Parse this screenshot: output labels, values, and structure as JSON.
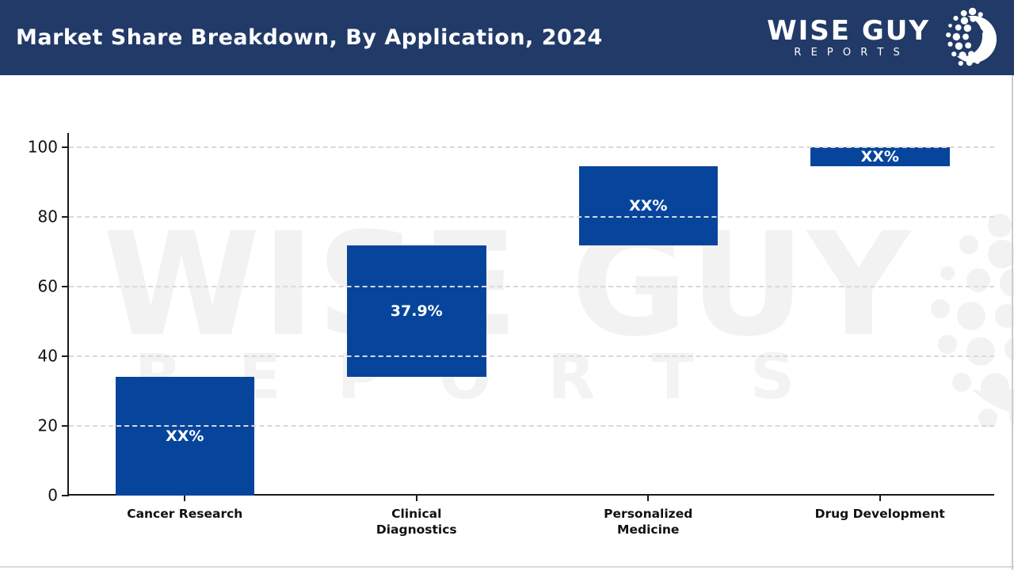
{
  "header": {
    "title": "Market Share Breakdown, By Application, 2024",
    "logo": {
      "name": "WISE GUY",
      "tagline": "R E P O R T S"
    }
  },
  "watermark": {
    "name": "WISE GUY",
    "tagline": "R E P O R T S"
  },
  "chart_data": {
    "type": "bar",
    "subtype": "floating-waterfall",
    "title": "Market Share Breakdown, By Application, 2024",
    "categories": [
      "Cancer Research",
      "Clinical\nDiagnostics",
      "Personalized\nMedicine",
      "Drug Development"
    ],
    "segments": [
      {
        "category": "Cancer Research",
        "start": 0,
        "end": 34,
        "label": "XX%"
      },
      {
        "category": "Clinical Diagnostics",
        "start": 34,
        "end": 71.9,
        "label": "37.9%"
      },
      {
        "category": "Personalized Medicine",
        "start": 71.9,
        "end": 94.5,
        "label": "XX%"
      },
      {
        "category": "Drug Development",
        "start": 94.5,
        "end": 100,
        "label": "XX%"
      }
    ],
    "ylim": [
      0,
      100
    ],
    "yticks": [
      0,
      20,
      40,
      60,
      80,
      100
    ],
    "grid": "horizontal-dashed",
    "legend": "none",
    "xlabel": "",
    "ylabel": ""
  },
  "colors": {
    "header_bg": "#213a68",
    "bar": "#07459c",
    "grid": "#d9d9d9",
    "axis": "#1a1a1a",
    "bar_label": "#ffffff",
    "watermark": "#f2f2f2"
  }
}
